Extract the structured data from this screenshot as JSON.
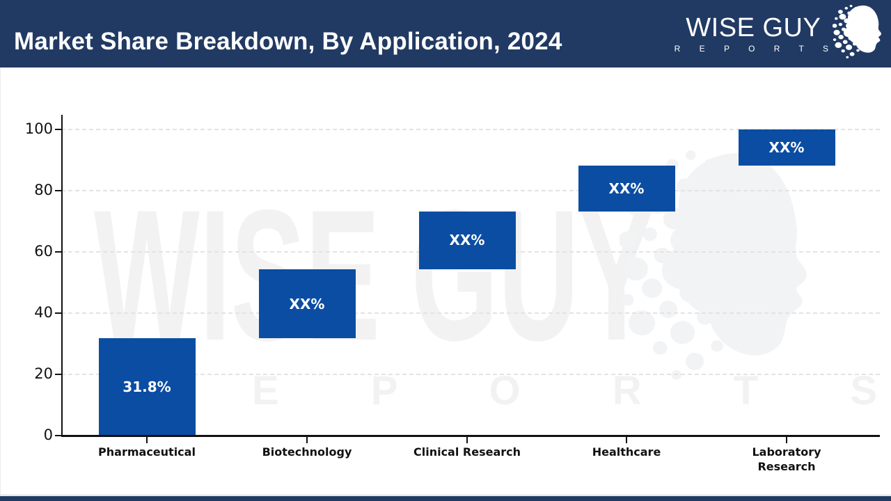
{
  "header": {
    "title": "Market Share Breakdown, By Application, 2024",
    "bg_color": "#213a63",
    "logo": {
      "line1": "WISE GUY",
      "line2": "R E P O R T S"
    }
  },
  "watermark": {
    "line1": "WISE GUY",
    "line2": "R E P O R T S"
  },
  "footer": {
    "bg_color": "#213a63"
  },
  "chart_data": {
    "type": "bar",
    "subtype": "floating-waterfall",
    "title": "Market Share Breakdown, By Application, 2024",
    "categories": [
      "Pharmaceutical",
      "Biotechnology",
      "Clinical Research",
      "Healthcare",
      "Laboratory Research"
    ],
    "series": [
      {
        "name": "Market share (cumulative %)",
        "segments": [
          {
            "category": "Pharmaceutical",
            "start": 0.0,
            "end": 31.8,
            "label": "31.8%"
          },
          {
            "category": "Biotechnology",
            "start": 31.8,
            "end": 54.2,
            "label": "XX%"
          },
          {
            "category": "Clinical Research",
            "start": 54.2,
            "end": 73.2,
            "label": "XX%"
          },
          {
            "category": "Healthcare",
            "start": 73.2,
            "end": 88.0,
            "label": "XX%"
          },
          {
            "category": "Laboratory Research",
            "start": 88.0,
            "end": 99.8,
            "label": "XX%"
          }
        ]
      }
    ],
    "xlabel": "",
    "ylabel": "",
    "ylim": [
      0,
      105
    ],
    "yticks": [
      0,
      20,
      40,
      60,
      80,
      100
    ],
    "grid": "horizontal-dashed",
    "legend": "none",
    "bar_color": "#0b4da2",
    "bar_label_color": "#ffffff",
    "axis_color": "#111111"
  }
}
